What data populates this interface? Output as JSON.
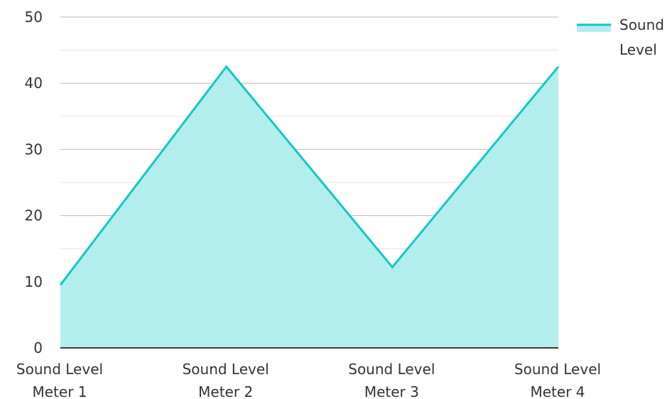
{
  "chart_data": {
    "type": "area",
    "categories": [
      [
        "Sound Level",
        "Meter 1"
      ],
      [
        "Sound Level",
        "Meter 2"
      ],
      [
        "Sound Level",
        "Meter 3"
      ],
      [
        "Sound Level",
        "Meter 4"
      ]
    ],
    "series": [
      {
        "name": "Sound Level",
        "values": [
          9.5,
          42.5,
          12.2,
          42.5
        ]
      }
    ],
    "ylim": [
      0,
      50
    ],
    "yticks": [
      "0",
      "10",
      "20",
      "30",
      "40",
      "50"
    ],
    "legend": {
      "position": "top-right",
      "label_lines": [
        "Sound",
        "Level"
      ]
    },
    "colors": {
      "line": "#16C6C6",
      "fill": "#B2EEEE",
      "grid_major": "#BBBBBB",
      "grid_minor": "#E3E3E3",
      "axis": "#000000",
      "text": "#333333"
    },
    "grid": true
  }
}
